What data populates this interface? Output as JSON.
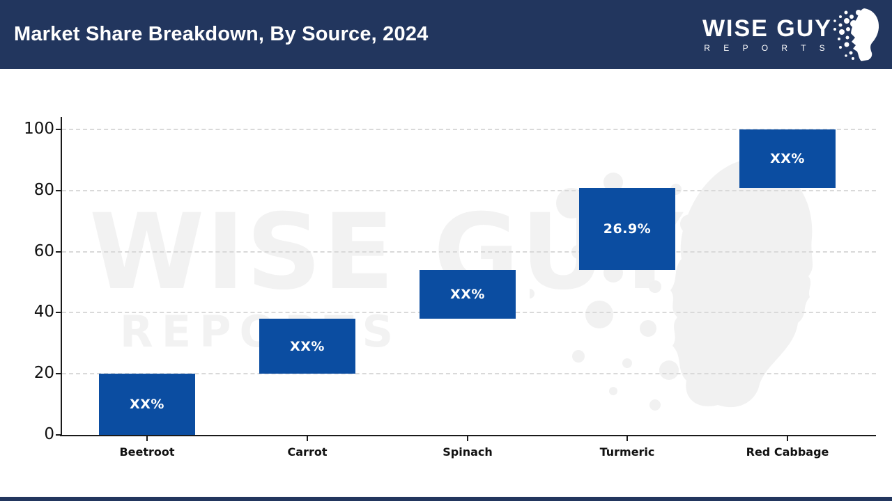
{
  "header": {
    "title": "Market Share Breakdown, By Source, 2024",
    "logo": {
      "line1": "WISE GUY",
      "line2": "R E P O R T S"
    }
  },
  "watermark": {
    "line1": "WISE GUY",
    "line2": "REPORTS"
  },
  "colors": {
    "header_bg": "#22365e",
    "footer_bg": "#22365e",
    "bar": "#0b4da1",
    "bar_label": "#ffffff",
    "gridline": "#d9d9d9",
    "axis": "#1a1a1a",
    "watermark": "#f2f2f2"
  },
  "chart_data": {
    "type": "bar",
    "subtype": "waterfall-floating-bars",
    "title": "Market Share Breakdown, By Source, 2024",
    "categories": [
      "Beetroot",
      "Carrot",
      "Spinach",
      "Turmeric",
      "Red Cabbage"
    ],
    "segments": [
      {
        "category": "Beetroot",
        "start": 0,
        "end": 20,
        "label": "XX%"
      },
      {
        "category": "Carrot",
        "start": 20,
        "end": 38,
        "label": "XX%"
      },
      {
        "category": "Spinach",
        "start": 38,
        "end": 54,
        "label": "XX%"
      },
      {
        "category": "Turmeric",
        "start": 54,
        "end": 80.9,
        "label": "26.9%"
      },
      {
        "category": "Red Cabbage",
        "start": 80.9,
        "end": 100,
        "label": "XX%"
      }
    ],
    "ylim": [
      0,
      100
    ],
    "yticks": [
      0,
      20,
      40,
      60,
      80,
      100
    ],
    "xlabel": "",
    "ylabel": "",
    "grid": "horizontal-dashed",
    "legend": null
  }
}
